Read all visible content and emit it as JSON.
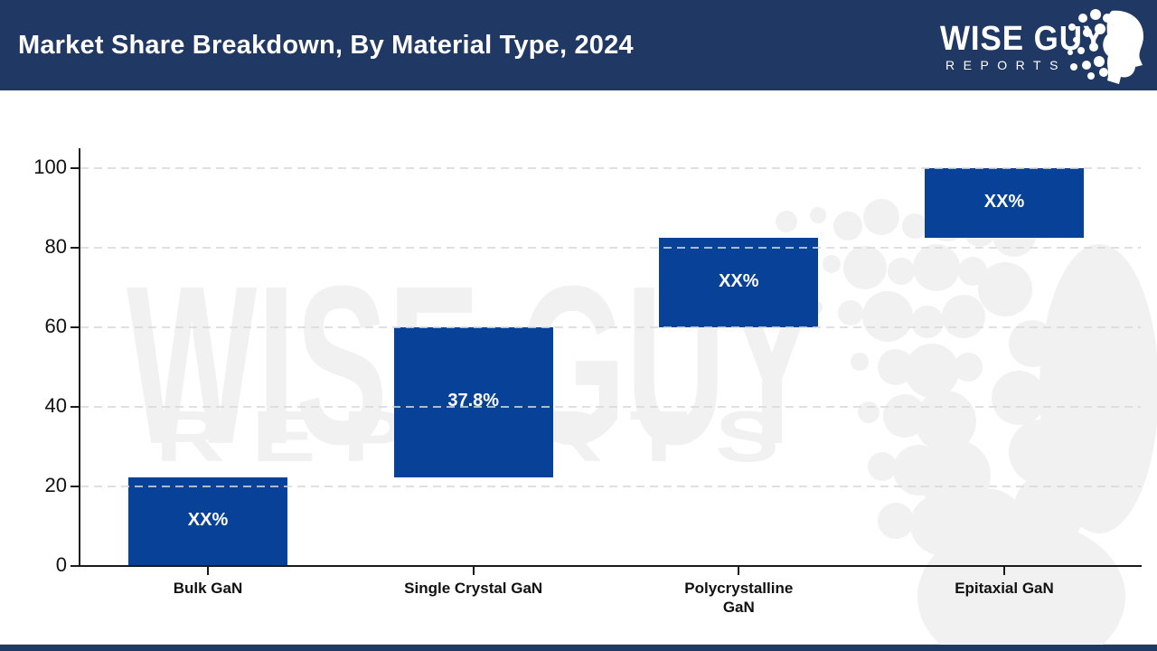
{
  "header": {
    "title": "Market Share Breakdown, By Material Type, 2024",
    "logo": {
      "line1": "WISE GUY",
      "line2": "REPORTS"
    }
  },
  "watermark": {
    "line1": "WISE GUY",
    "line2": "R E P O R T S"
  },
  "chart_data": {
    "type": "bar",
    "subtype": "waterfall-stacked-percentage",
    "title": "Market Share Breakdown, By Material Type, 2024",
    "categories": [
      "Bulk GaN",
      "Single Crystal GaN",
      "Polycrystalline\nGaN",
      "Epitaxial GaN"
    ],
    "segments": [
      {
        "category": "Bulk GaN",
        "base": 0,
        "top": 22.2,
        "label": "XX%"
      },
      {
        "category": "Single Crystal GaN",
        "base": 22.2,
        "top": 60.0,
        "label": "37.8%"
      },
      {
        "category": "Polycrystalline\nGaN",
        "base": 60.0,
        "top": 82.5,
        "label": "XX%"
      },
      {
        "category": "Epitaxial GaN",
        "base": 82.5,
        "top": 100.0,
        "label": "XX%"
      }
    ],
    "xlabel": "",
    "ylabel": "",
    "ylim": [
      0,
      100
    ],
    "yticks": [
      0,
      20,
      40,
      60,
      80,
      100
    ],
    "grid": "horizontal-dashed",
    "legend": false,
    "bar_color": "#084198"
  },
  "colors": {
    "header_navy": "#203864",
    "bar_blue": "#084198",
    "grid_gray": "#d9d9d9",
    "watermark_gray": "#f1f1f2",
    "text_black": "#111111",
    "label_white": "#ffffff"
  }
}
